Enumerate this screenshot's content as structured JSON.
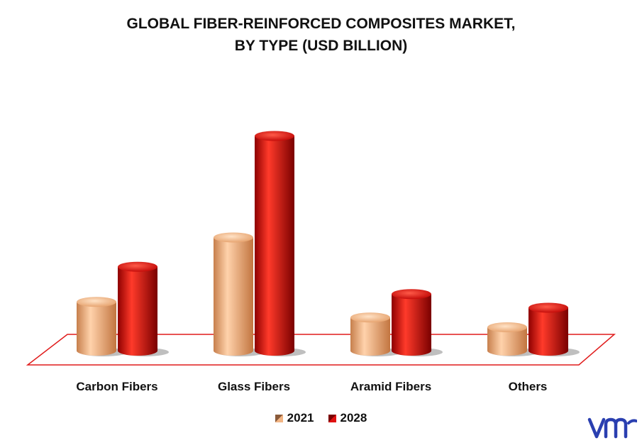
{
  "chart_data": {
    "type": "bar",
    "title_line1": "GLOBAL FIBER-REINFORCED COMPOSITES MARKET,",
    "title_line2": "BY TYPE (USD BILLION)",
    "categories": [
      "Carbon Fibers",
      "Glass Fibers",
      "Aramid Fibers",
      "Others"
    ],
    "series": [
      {
        "name": "2021",
        "values": [
          25,
          58,
          17,
          12
        ],
        "color": "#e8a06a"
      },
      {
        "name": "2028",
        "values": [
          43,
          110,
          29,
          22
        ],
        "color": "#d40d0d"
      }
    ],
    "ylim": [
      0,
      120
    ],
    "grid": false,
    "legend": "bottom"
  },
  "brand": {
    "logo": "vmr-logo"
  }
}
